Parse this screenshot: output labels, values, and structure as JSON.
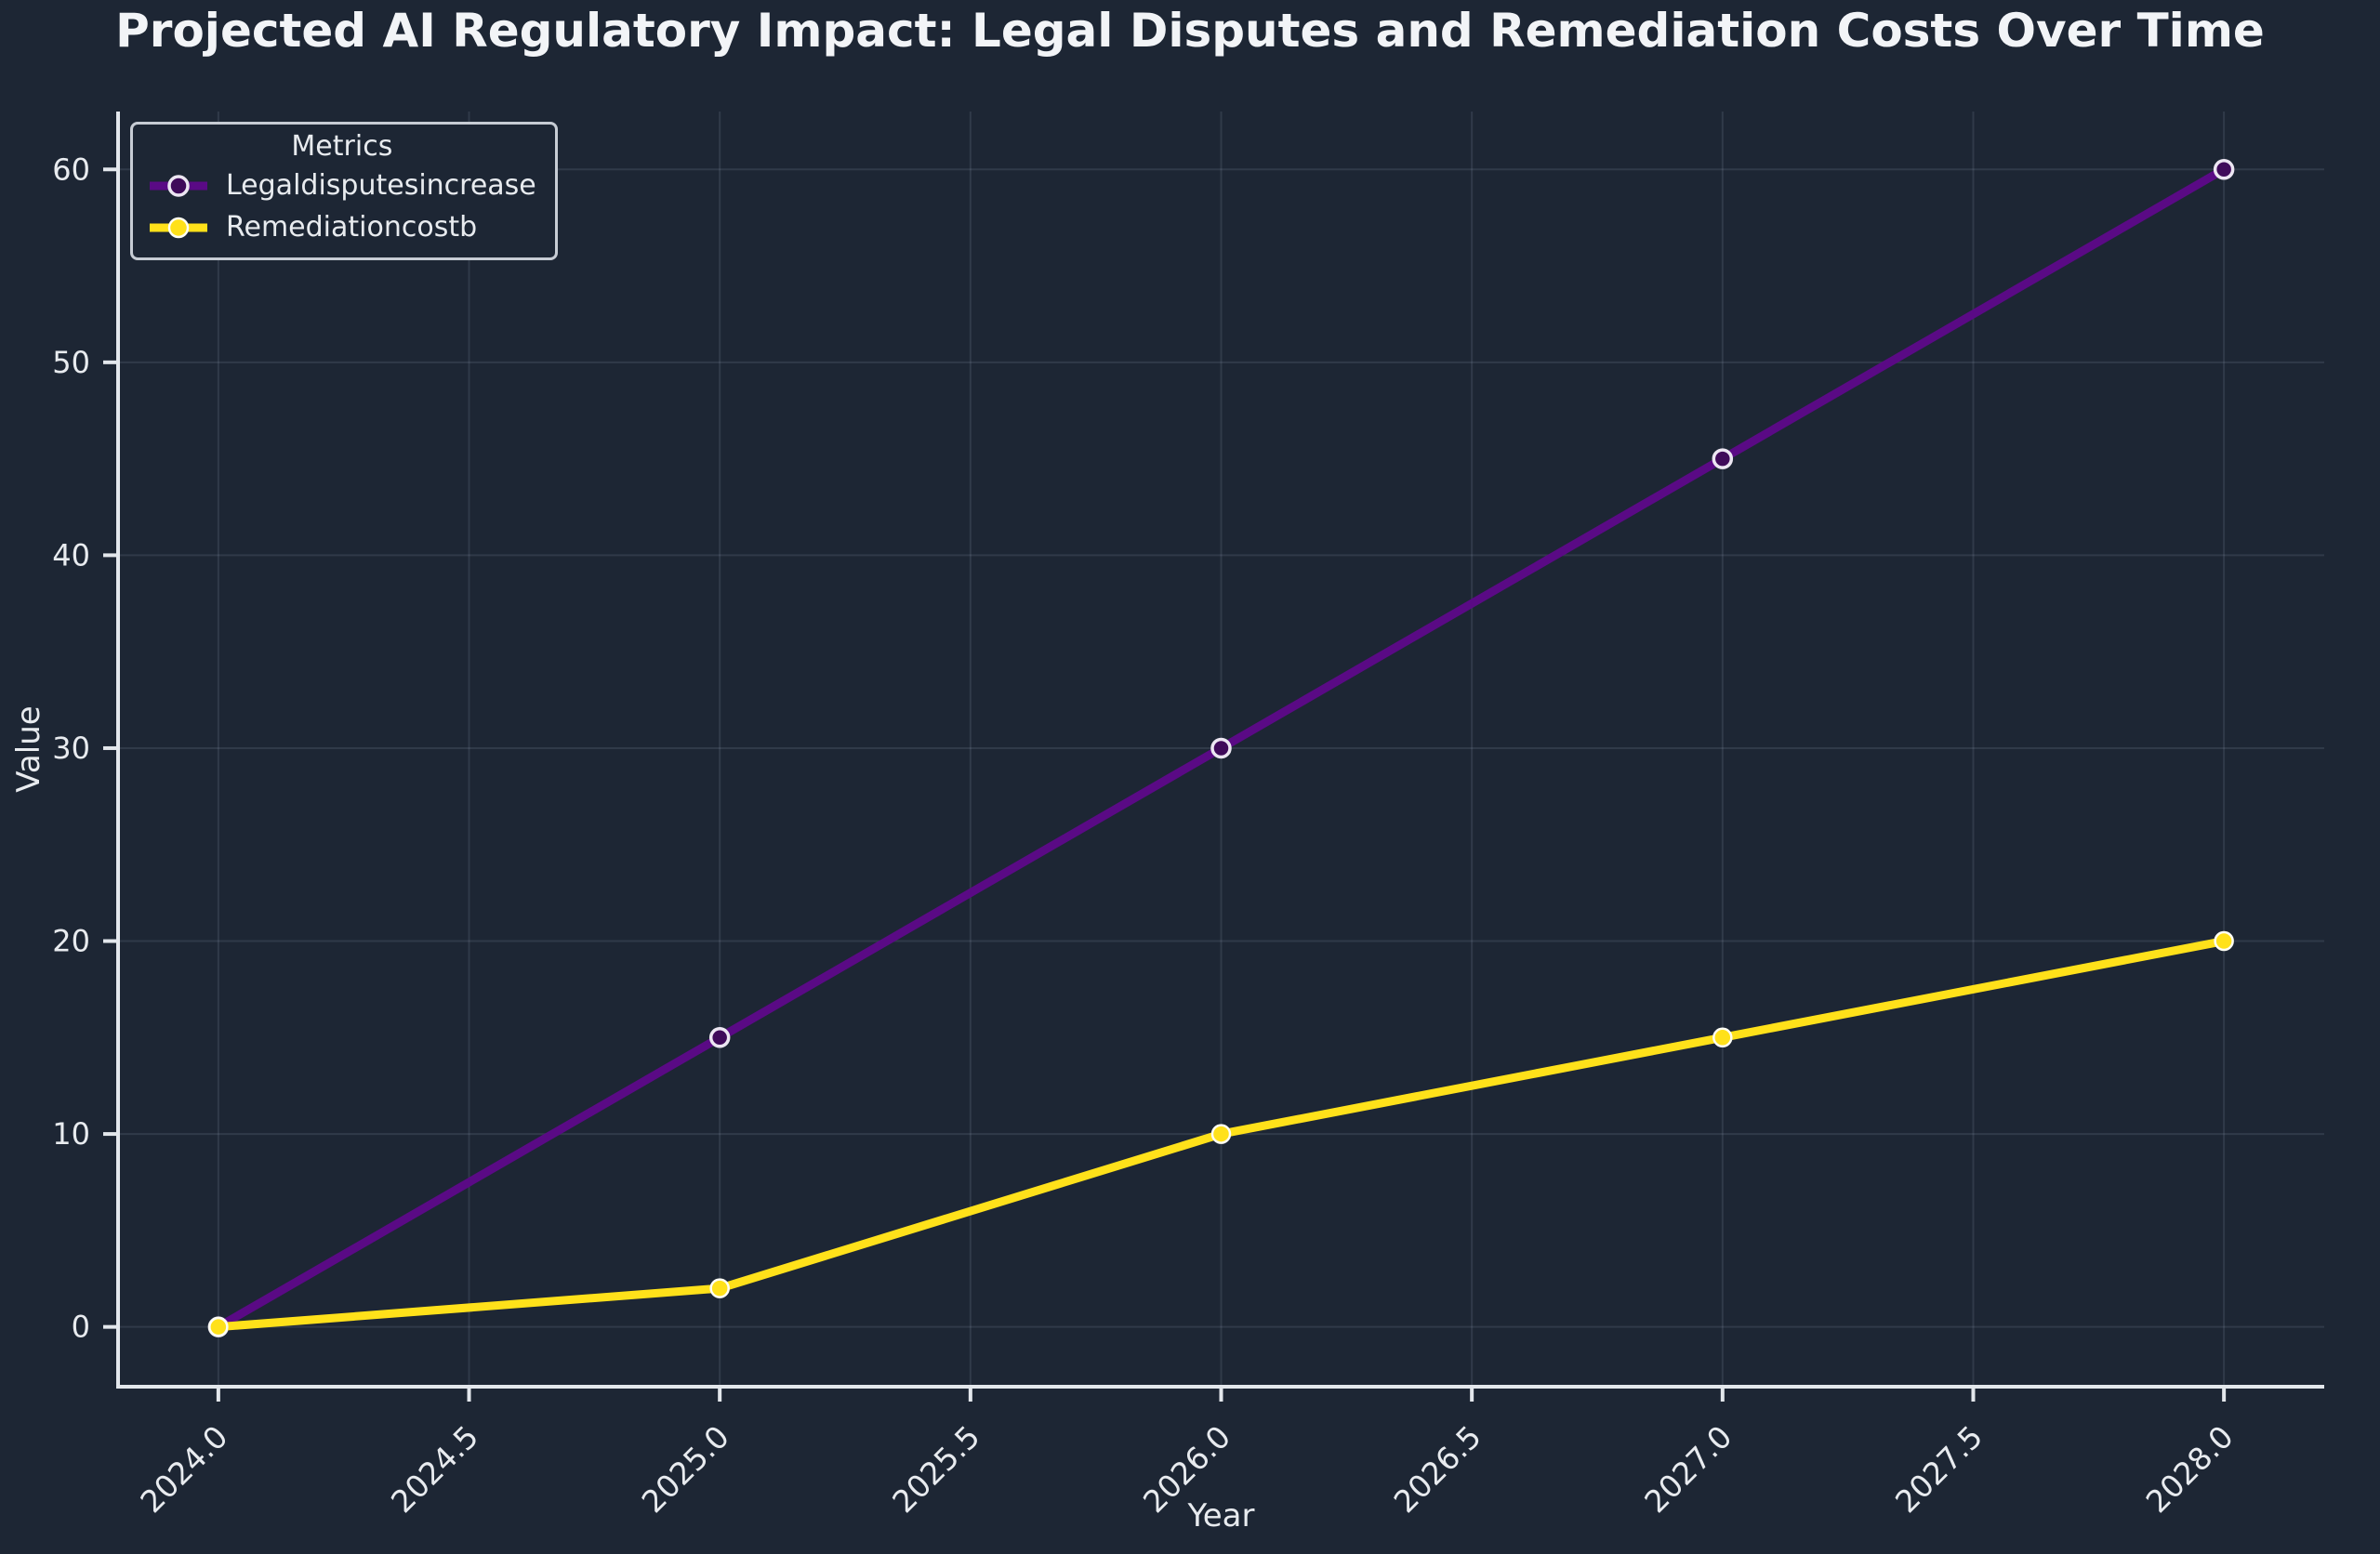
{
  "chart_data": {
    "type": "line",
    "title": "Projected AI Regulatory Impact: Legal Disputes and Remediation Costs Over Time",
    "xlabel": "Year",
    "ylabel": "Value",
    "x": [
      2024,
      2025,
      2026,
      2027,
      2028
    ],
    "series": [
      {
        "name": "Legaldisputesincrease",
        "values": [
          0,
          15,
          30,
          45,
          60
        ],
        "color": "#5a0a85",
        "marker": "open-circle",
        "marker_face": "#3f0a5a",
        "marker_edge": "#ece6f2"
      },
      {
        "name": "Remediationcostb",
        "values": [
          0,
          2,
          10,
          15,
          20
        ],
        "color": "#ffe11a",
        "marker": "filled-circle",
        "marker_face": "#ffe11a",
        "marker_edge": "#fdfdf4"
      }
    ],
    "x_tick_values": [
      2024.0,
      2024.5,
      2025.0,
      2025.5,
      2026.0,
      2026.5,
      2027.0,
      2027.5,
      2028.0
    ],
    "x_tick_labels": [
      "2024.0",
      "2024.5",
      "2025.0",
      "2025.5",
      "2026.0",
      "2026.5",
      "2027.0",
      "2027.5",
      "2028.0"
    ],
    "y_tick_values": [
      0,
      10,
      20,
      30,
      40,
      50,
      60
    ],
    "y_tick_labels": [
      "0",
      "10",
      "20",
      "30",
      "40",
      "50",
      "60"
    ],
    "xlim": [
      2023.8,
      2028.2
    ],
    "ylim": [
      -3.1,
      63
    ],
    "grid": true,
    "legend": {
      "title": "Metrics",
      "position": "upper-left"
    }
  },
  "colors": {
    "background": "#1d2634",
    "title_text": "#f2f4f7",
    "text": "#e8ebef",
    "grid": "rgba(170,185,205,0.14)",
    "spine": "#e3e7ec",
    "legend_border": "#c7ccd4"
  }
}
